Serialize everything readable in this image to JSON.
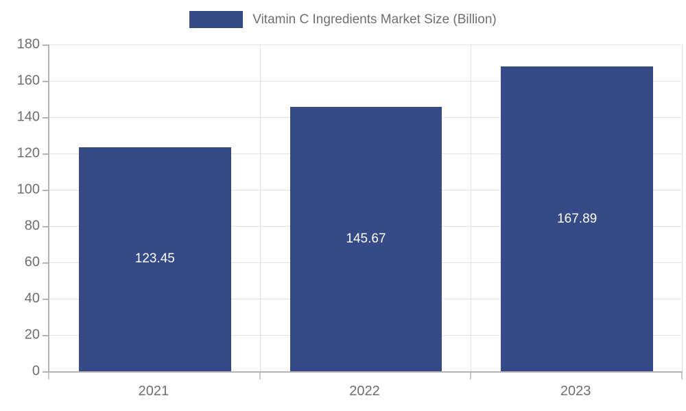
{
  "legend": {
    "label": "Vitamin C Ingredients Market Size (Billion)"
  },
  "chart_data": {
    "type": "bar",
    "title": "Vitamin C Ingredients Market Size (Billion)",
    "categories": [
      "2021",
      "2022",
      "2023"
    ],
    "values": [
      123.45,
      145.67,
      167.89
    ],
    "value_labels": [
      "123.45",
      "145.67",
      "167.89"
    ],
    "xlabel": "",
    "ylabel": "",
    "ylim": [
      0,
      180
    ],
    "ytick_step": 20,
    "grid": true,
    "legend_position": "top-center",
    "colors": {
      "bar": "#364a88",
      "value_label_text": "#ffffff",
      "axis_text": "#6e6e6e",
      "gridline": "#e4e4e4",
      "axis_line": "#b3b3b3"
    }
  }
}
